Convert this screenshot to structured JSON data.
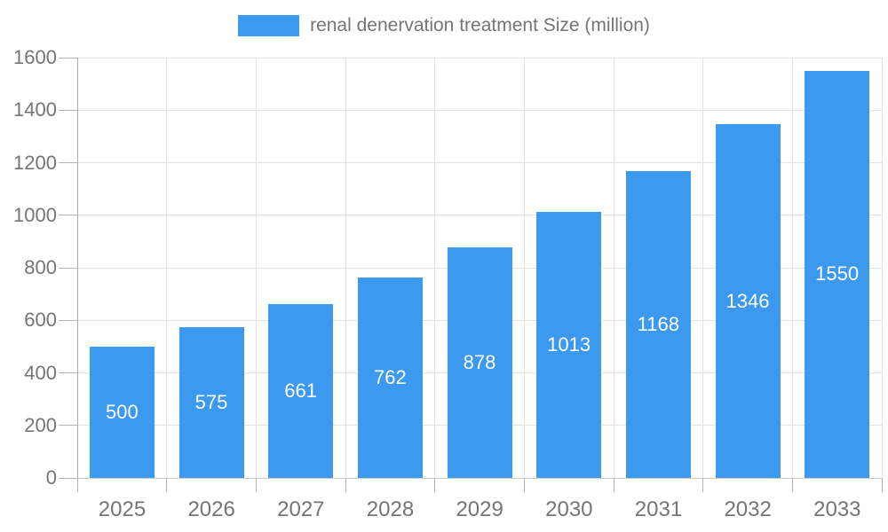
{
  "chart_data": {
    "type": "bar",
    "title": "",
    "categories": [
      "2025",
      "2026",
      "2027",
      "2028",
      "2029",
      "2030",
      "2031",
      "2032",
      "2033"
    ],
    "values": [
      500,
      575,
      661,
      762,
      878,
      1013,
      1168,
      1346,
      1550
    ],
    "series_name": "renal denervation treatment Size (million)",
    "xlabel": "",
    "ylabel": "",
    "ylim": [
      0,
      1600
    ],
    "ytick_step": 200,
    "yticks": [
      "0",
      "200",
      "400",
      "600",
      "800",
      "1000",
      "1200",
      "1400",
      "1600"
    ],
    "grid": true,
    "legend_position": "top-center",
    "data_labels": "inside-center"
  },
  "legend": {
    "label": "renal denervation treatment Size (million)"
  },
  "colors": {
    "bar": "#3B99F0",
    "bar_label": "#ffffff",
    "axis_text": "#757575",
    "legend_text": "#757575",
    "gridline": "#e3e3e3",
    "axis_line": "#aaaaaa"
  }
}
